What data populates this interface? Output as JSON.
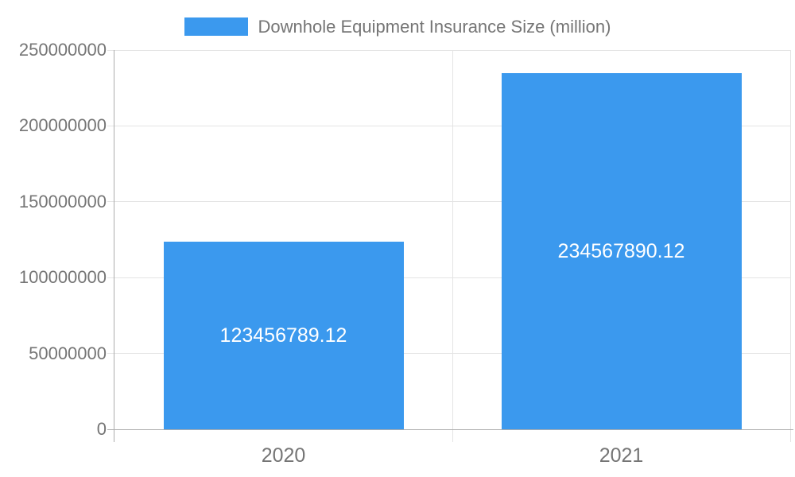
{
  "chart_data": {
    "type": "bar",
    "title": "",
    "legend_label": "Downhole Equipment Insurance Size (million)",
    "legend_position": "top-center",
    "categories": [
      "2020",
      "2021"
    ],
    "series": [
      {
        "name": "Downhole Equipment Insurance Size (million)",
        "values": [
          123456789.12,
          234567890.12
        ],
        "value_labels": [
          "123456789.12",
          "234567890.12"
        ]
      }
    ],
    "xlabel": "",
    "ylabel": "",
    "y_ticks": [
      0,
      50000000,
      100000000,
      150000000,
      200000000,
      250000000
    ],
    "y_tick_labels": [
      "0",
      "50000000",
      "100000000",
      "150000000",
      "200000000",
      "250000000"
    ],
    "ylim": [
      0,
      250000000
    ],
    "grid": true,
    "value_labels_inside_bars": true
  },
  "colors": {
    "bar": "#3B99EE",
    "axis_line": "#ADADAD",
    "gridline": "#E4E4E4",
    "axis_text": "#757575",
    "value_label_text": "#FFFFFF",
    "background": "#FFFFFF"
  }
}
